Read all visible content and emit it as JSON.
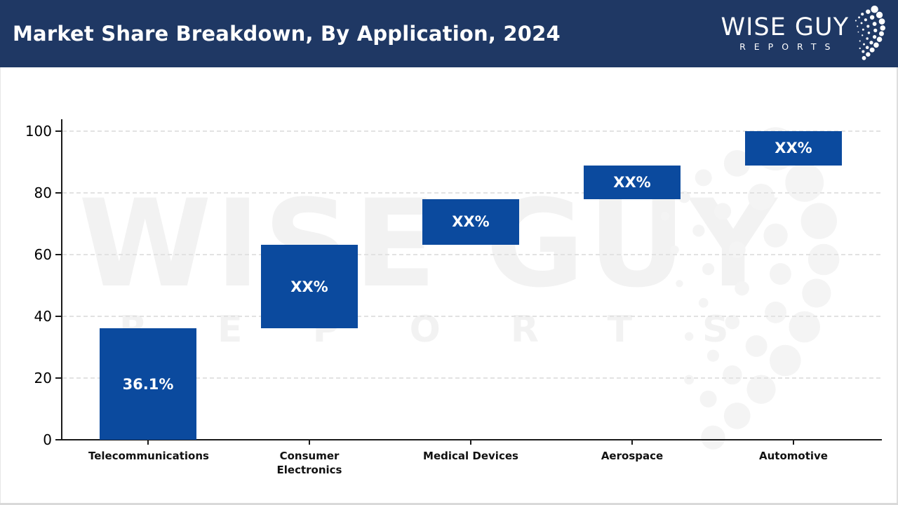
{
  "header": {
    "title": "Market Share Breakdown, By Application, 2024",
    "logo": {
      "line1": "WISE GUY",
      "line2": "REPORTS"
    }
  },
  "watermark": {
    "line1": "WISE GUY",
    "line2": "REPORTS"
  },
  "colors": {
    "header_bg": "#1f3864",
    "bar": "#0b4a9e",
    "grid": "#e2e2e2",
    "axis": "#1a1a1a",
    "bar_label": "#ffffff",
    "watermark": "#f2f2f2"
  },
  "chart_data": {
    "type": "bar",
    "subtype": "waterfall",
    "title": "Market Share Breakdown, By Application, 2024",
    "categories": [
      "Telecommunications",
      "Consumer Electronics",
      "Medical Devices",
      "Aerospace",
      "Automotive"
    ],
    "bars": [
      {
        "category": "Telecommunications",
        "label": "36.1%",
        "start": 0,
        "end": 36.1
      },
      {
        "category": "Consumer Electronics",
        "label": "XX%",
        "start": 36.1,
        "end": 63.2
      },
      {
        "category": "Medical Devices",
        "label": "XX%",
        "start": 63.2,
        "end": 78.0
      },
      {
        "category": "Aerospace",
        "label": "XX%",
        "start": 78.0,
        "end": 88.9
      },
      {
        "category": "Automotive",
        "label": "XX%",
        "start": 88.9,
        "end": 100.0
      }
    ],
    "yticks": [
      0,
      20,
      40,
      60,
      80,
      100
    ],
    "ylim": [
      0,
      104
    ],
    "xlabel": "",
    "ylabel": "",
    "grid": "horizontal-dashed",
    "legend": "none"
  }
}
